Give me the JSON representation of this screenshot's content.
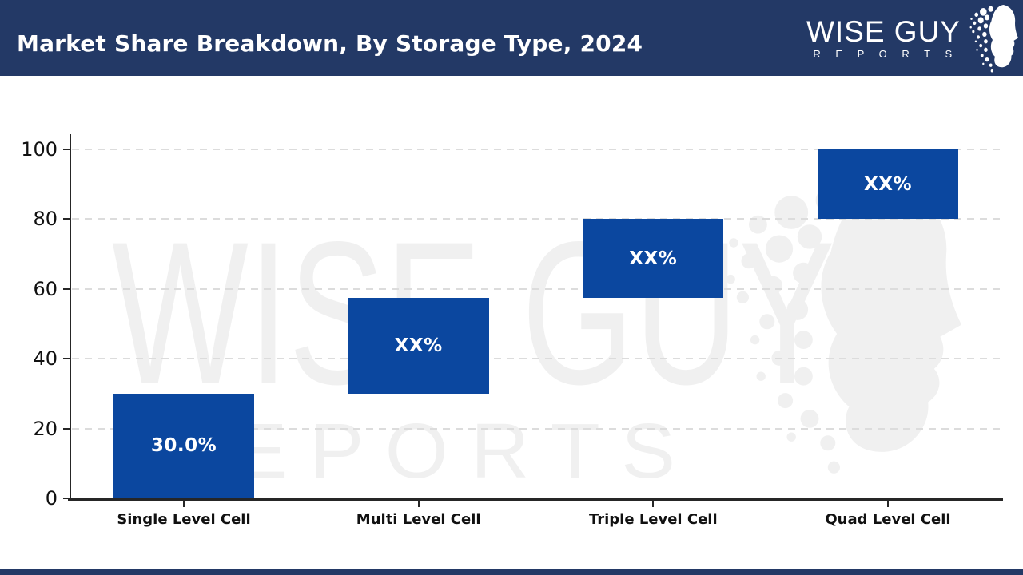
{
  "header": {
    "title": "Market Share Breakdown, By Storage Type, 2024",
    "logo": {
      "line1": "WISE GUY",
      "line2": "R E P O R T S"
    }
  },
  "watermark": {
    "line1": "WISE GUY",
    "line2": "R E P O R T S"
  },
  "footer": {},
  "chart_data": {
    "type": "bar",
    "subtype": "waterfall",
    "title": "Market Share Breakdown, By Storage Type, 2024",
    "categories": [
      "Single Level Cell",
      "Multi Level Cell",
      "Triple Level Cell",
      "Quad Level Cell"
    ],
    "series": [
      {
        "name": "Market Share",
        "segments": [
          {
            "category": "Single Level Cell",
            "start": 0,
            "end": 30,
            "value": 30,
            "label": "30.0%"
          },
          {
            "category": "Multi Level Cell",
            "start": 30,
            "end": 57.5,
            "value": 27.5,
            "label": "XX%"
          },
          {
            "category": "Triple Level Cell",
            "start": 57.5,
            "end": 80,
            "value": 22.5,
            "label": "XX%"
          },
          {
            "category": "Quad Level Cell",
            "start": 80,
            "end": 100,
            "value": 20,
            "label": "XX%"
          }
        ]
      }
    ],
    "xlabel": "",
    "ylabel": "",
    "ylim": [
      0,
      100
    ],
    "yticks": [
      0,
      20,
      40,
      60,
      80,
      100
    ],
    "grid": true,
    "grid_style": "dashed",
    "legend": "none",
    "bar_color": "#0b479f",
    "bar_label_color": "#ffffff",
    "header_color": "#233966",
    "watermark_color": "#f0f0f0"
  }
}
